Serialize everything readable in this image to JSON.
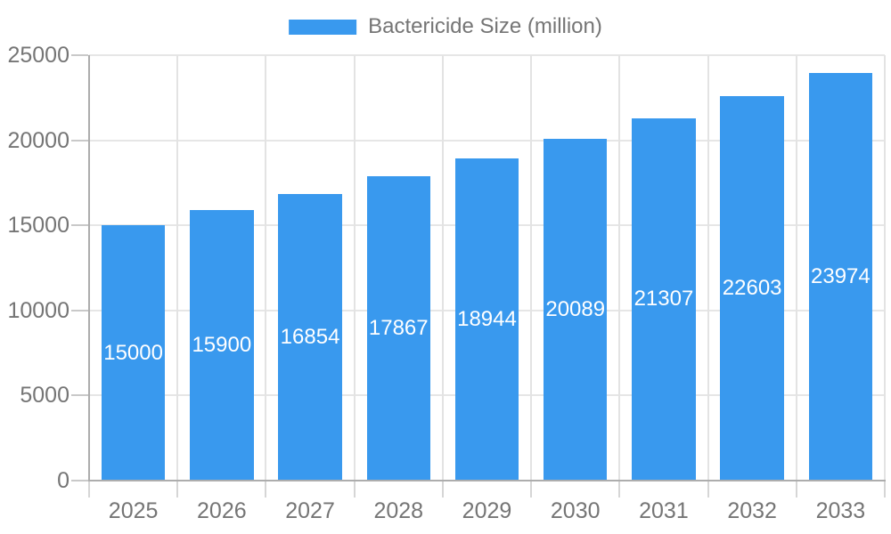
{
  "legend": {
    "label": "Bactericide Size (million)"
  },
  "colors": {
    "bar": "#3999EE",
    "bar_label": "#FFFFFF",
    "axis_text": "#757575",
    "grid": "#E6E6E6",
    "axis_line": "#ADADAD",
    "tick": "#C9C9C9",
    "background": "#FFFFFF"
  },
  "chart_data": {
    "type": "bar",
    "title": "Bactericide Size (million)",
    "categories": [
      "2025",
      "2026",
      "2027",
      "2028",
      "2029",
      "2030",
      "2031",
      "2032",
      "2033"
    ],
    "series": [
      {
        "name": "Bactericide Size (million)",
        "values": [
          15000,
          15900,
          16854,
          17867,
          18944,
          20089,
          21307,
          22603,
          23974
        ]
      }
    ],
    "xlabel": "",
    "ylabel": "",
    "ylim": [
      0,
      25000
    ],
    "yticks": [
      0,
      5000,
      10000,
      15000,
      20000,
      25000
    ],
    "grid": true,
    "legend_position": "top",
    "value_label_position": "inside-center",
    "bar_width_fraction": 0.72
  }
}
